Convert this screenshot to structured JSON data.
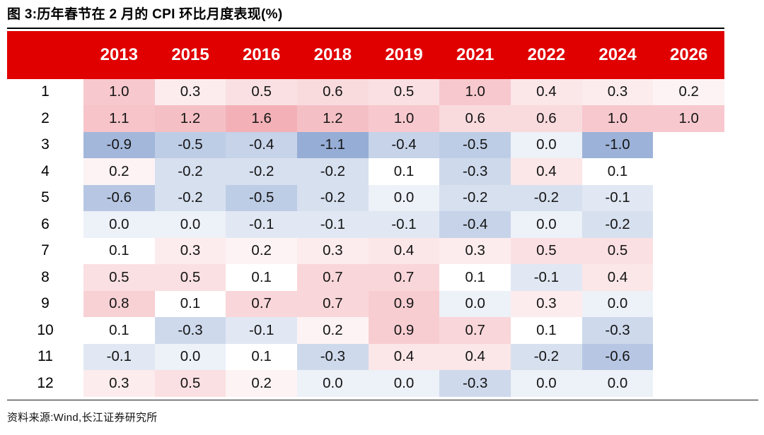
{
  "page": {
    "title": "图 3:历年春节在 2 月的 CPI 环比月度表现(%)",
    "source": "资料来源:Wind,长江证券研究所",
    "accent_color": "#E00000",
    "header_text_color": "#FFFFFF"
  },
  "heatmap": {
    "positive_color": "#F3B1B7",
    "negative_color": "#96ADD6",
    "empty_color": "#FFFFFF",
    "midpoint_value": 0.1,
    "max_value": 1.6,
    "min_value": -1.1,
    "gamma": 0.7,
    "decimals": 1
  },
  "chart_data": {
    "type": "heatmap",
    "title": "图 3:历年春节在 2 月的 CPI 环比月度表现(%)",
    "unit": "%",
    "columns": [
      "2013",
      "2015",
      "2016",
      "2018",
      "2019",
      "2021",
      "2022",
      "2024",
      "2026"
    ],
    "row_labels": [
      "1",
      "2",
      "3",
      "4",
      "5",
      "6",
      "7",
      "8",
      "9",
      "10",
      "11",
      "12"
    ],
    "values": [
      [
        1.0,
        0.3,
        0.5,
        0.6,
        0.5,
        1.0,
        0.4,
        0.3,
        0.2
      ],
      [
        1.1,
        1.2,
        1.6,
        1.2,
        1.0,
        0.6,
        0.6,
        1.0,
        1.0
      ],
      [
        -0.9,
        -0.5,
        -0.4,
        -1.1,
        -0.4,
        -0.5,
        0.0,
        -1.0,
        null
      ],
      [
        0.2,
        -0.2,
        -0.2,
        -0.2,
        0.1,
        -0.3,
        0.4,
        0.1,
        null
      ],
      [
        -0.6,
        -0.2,
        -0.5,
        -0.2,
        0.0,
        -0.2,
        -0.2,
        -0.1,
        null
      ],
      [
        0.0,
        0.0,
        -0.1,
        -0.1,
        -0.1,
        -0.4,
        0.0,
        -0.2,
        null
      ],
      [
        0.1,
        0.3,
        0.2,
        0.3,
        0.4,
        0.3,
        0.5,
        0.5,
        null
      ],
      [
        0.5,
        0.5,
        0.1,
        0.7,
        0.7,
        0.1,
        -0.1,
        0.4,
        null
      ],
      [
        0.8,
        0.1,
        0.7,
        0.7,
        0.9,
        0.0,
        0.3,
        0.0,
        null
      ],
      [
        0.1,
        -0.3,
        -0.1,
        0.2,
        0.9,
        0.7,
        0.1,
        -0.3,
        null
      ],
      [
        -0.1,
        0.0,
        0.1,
        -0.3,
        0.4,
        0.4,
        -0.2,
        -0.6,
        null
      ],
      [
        0.3,
        0.5,
        0.2,
        0.0,
        0.0,
        -0.3,
        0.0,
        0.0,
        null
      ]
    ]
  }
}
